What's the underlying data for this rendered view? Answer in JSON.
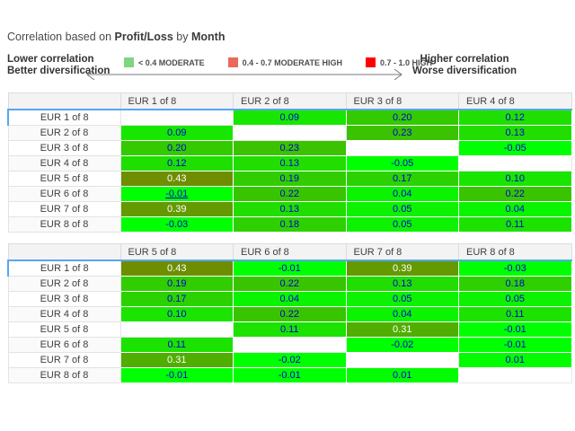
{
  "title": {
    "prefix": "Correlation based on ",
    "metric": "Profit/Loss",
    "mid": " by ",
    "period": "Month"
  },
  "legend": {
    "left_line1": "Lower correlation",
    "left_line2": "Better diversification",
    "right_line1": "Higher correlation",
    "right_line2": "Worse diversification"
  },
  "chart_data": {
    "type": "heatmap",
    "title": "Correlation based on Profit/Loss by Month",
    "legend_items": [
      {
        "label": "< 0.4 MODERATE",
        "color": "#7ed67e"
      },
      {
        "label": "0.4 - 0.7 MODERATE HIGH",
        "color": "#e8695a"
      },
      {
        "label": "0.7 - 1.0 HIGH",
        "color": "#ff0000"
      }
    ],
    "value_text_color": "#0000d8",
    "high_value_text_color": "#ffffff",
    "matrices": [
      {
        "columns": [
          "EUR 1 of 8",
          "EUR 2 of 8",
          "EUR 3 of 8",
          "EUR 4 of 8"
        ],
        "rows": [
          {
            "label": "EUR 1 of 8",
            "cells": [
              null,
              {
                "v": "0.09",
                "bg": "#17e700"
              },
              {
                "v": "0.20",
                "bg": "#33ca00"
              },
              {
                "v": "0.12",
                "bg": "#1fdf00"
              }
            ]
          },
          {
            "label": "EUR 2 of 8",
            "cells": [
              {
                "v": "0.09",
                "bg": "#17e700"
              },
              null,
              {
                "v": "0.23",
                "bg": "#3bc200"
              },
              {
                "v": "0.13",
                "bg": "#21dd00"
              }
            ]
          },
          {
            "label": "EUR 3 of 8",
            "cells": [
              {
                "v": "0.20",
                "bg": "#33ca00"
              },
              {
                "v": "0.23",
                "bg": "#3bc200"
              },
              null,
              {
                "v": "-0.05",
                "bg": "#00ff00"
              }
            ]
          },
          {
            "label": "EUR 4 of 8",
            "cells": [
              {
                "v": "0.12",
                "bg": "#1fdf00"
              },
              {
                "v": "0.13",
                "bg": "#21dd00"
              },
              {
                "v": "-0.05",
                "bg": "#00ff00"
              },
              null
            ]
          },
          {
            "label": "EUR 5 of 8",
            "cells": [
              {
                "v": "0.43",
                "bg": "#6e8e00",
                "fg": "#ffffff"
              },
              {
                "v": "0.19",
                "bg": "#31cd00"
              },
              {
                "v": "0.17",
                "bg": "#2bd200"
              },
              {
                "v": "0.10",
                "bg": "#1ae500"
              }
            ]
          },
          {
            "label": "EUR 6 of 8",
            "cells": [
              {
                "v": "-0.01",
                "bg": "#00ff00",
                "u": true
              },
              {
                "v": "0.22",
                "bg": "#38c500"
              },
              {
                "v": "0.04",
                "bg": "#0af400"
              },
              {
                "v": "0.22",
                "bg": "#38c500"
              }
            ]
          },
          {
            "label": "EUR 7 of 8",
            "cells": [
              {
                "v": "0.39",
                "bg": "#649900",
                "fg": "#ffffff"
              },
              {
                "v": "0.13",
                "bg": "#21dd00"
              },
              {
                "v": "0.05",
                "bg": "#0df200"
              },
              {
                "v": "0.04",
                "bg": "#0af400"
              }
            ]
          },
          {
            "label": "EUR 8 of 8",
            "cells": [
              {
                "v": "-0.03",
                "bg": "#00ff00"
              },
              {
                "v": "0.18",
                "bg": "#2ed000"
              },
              {
                "v": "0.05",
                "bg": "#0df200"
              },
              {
                "v": "0.11",
                "bg": "#1ce200"
              }
            ]
          }
        ]
      },
      {
        "columns": [
          "EUR 5 of 8",
          "EUR 6 of 8",
          "EUR 7 of 8",
          "EUR 8 of 8"
        ],
        "rows": [
          {
            "label": "EUR 1 of 8",
            "cells": [
              {
                "v": "0.43",
                "bg": "#6e8e00",
                "fg": "#ffffff"
              },
              {
                "v": "-0.01",
                "bg": "#00ff00"
              },
              {
                "v": "0.39",
                "bg": "#649900",
                "fg": "#ffffff"
              },
              {
                "v": "-0.03",
                "bg": "#00ff00"
              }
            ]
          },
          {
            "label": "EUR 2 of 8",
            "cells": [
              {
                "v": "0.19",
                "bg": "#31cd00"
              },
              {
                "v": "0.22",
                "bg": "#38c500"
              },
              {
                "v": "0.13",
                "bg": "#21dd00"
              },
              {
                "v": "0.18",
                "bg": "#2ed000"
              }
            ]
          },
          {
            "label": "EUR 3 of 8",
            "cells": [
              {
                "v": "0.17",
                "bg": "#2bd200"
              },
              {
                "v": "0.04",
                "bg": "#0af400"
              },
              {
                "v": "0.05",
                "bg": "#0df200"
              },
              {
                "v": "0.05",
                "bg": "#0df200"
              }
            ]
          },
          {
            "label": "EUR 4 of 8",
            "cells": [
              {
                "v": "0.10",
                "bg": "#1ae500"
              },
              {
                "v": "0.22",
                "bg": "#38c500"
              },
              {
                "v": "0.04",
                "bg": "#0af400"
              },
              {
                "v": "0.11",
                "bg": "#1ce200"
              }
            ]
          },
          {
            "label": "EUR 5 of 8",
            "cells": [
              null,
              {
                "v": "0.11",
                "bg": "#1ce200"
              },
              {
                "v": "0.31",
                "bg": "#4fae00",
                "fg": "#ffffff"
              },
              {
                "v": "-0.01",
                "bg": "#00ff00"
              }
            ]
          },
          {
            "label": "EUR 6 of 8",
            "cells": [
              {
                "v": "0.11",
                "bg": "#1ce200"
              },
              null,
              {
                "v": "-0.02",
                "bg": "#00ff00"
              },
              {
                "v": "-0.01",
                "bg": "#00ff00"
              }
            ]
          },
          {
            "label": "EUR 7 of 8",
            "cells": [
              {
                "v": "0.31",
                "bg": "#4fae00",
                "fg": "#ffffff"
              },
              {
                "v": "-0.02",
                "bg": "#00ff00"
              },
              null,
              {
                "v": "0.01",
                "bg": "#03fc00"
              }
            ]
          },
          {
            "label": "EUR 8 of 8",
            "cells": [
              {
                "v": "-0.01",
                "bg": "#00ff00"
              },
              {
                "v": "-0.01",
                "bg": "#00ff00"
              },
              {
                "v": "0.01",
                "bg": "#03fc00"
              },
              null
            ]
          }
        ]
      }
    ]
  }
}
